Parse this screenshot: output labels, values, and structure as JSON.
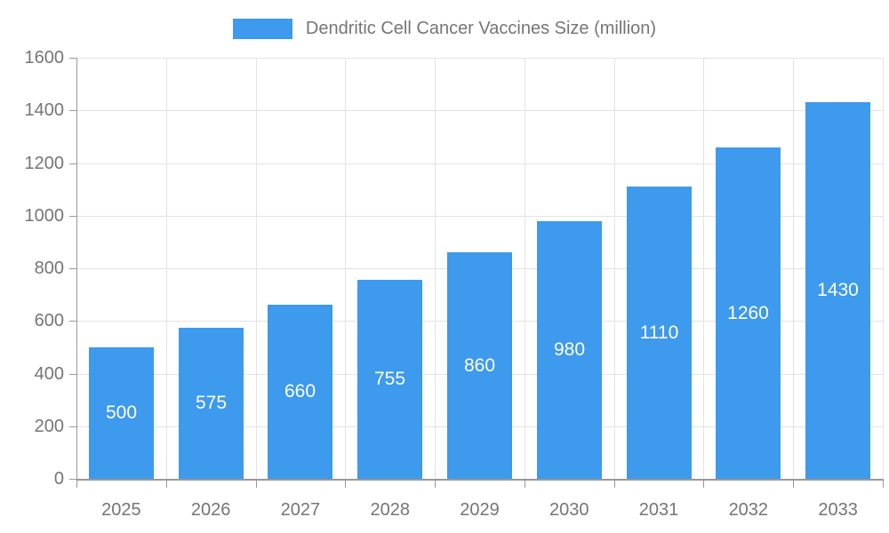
{
  "chart_data": {
    "type": "bar",
    "title": "Dendritic Cell Cancer Vaccines Size (million)",
    "legend_entries": [
      "Dendritic Cell Cancer Vaccines Size (million)"
    ],
    "categories": [
      "2025",
      "2026",
      "2027",
      "2028",
      "2029",
      "2030",
      "2031",
      "2032",
      "2033"
    ],
    "values": [
      500,
      575,
      660,
      755,
      860,
      980,
      1110,
      1260,
      1430
    ],
    "bar_value_labels": [
      "500",
      "575",
      "660",
      "755",
      "860",
      "980",
      "1110",
      "1260",
      "1430"
    ],
    "xlabel": "",
    "ylabel": "",
    "ylim": [
      0,
      1600
    ],
    "ytick_step": 200,
    "ytick_labels": [
      "0",
      "200",
      "400",
      "600",
      "800",
      "1000",
      "1200",
      "1400",
      "1600"
    ],
    "grid": true,
    "legend_position": "top-center",
    "colors": {
      "bar": "#3D9AEC",
      "bar_value_text": "#FFFFFF",
      "axis_line": "#999999",
      "grid_line": "#E3E3E3",
      "tick_text": "#757575",
      "legend_text": "#757575",
      "background": "#FFFFFF"
    }
  }
}
